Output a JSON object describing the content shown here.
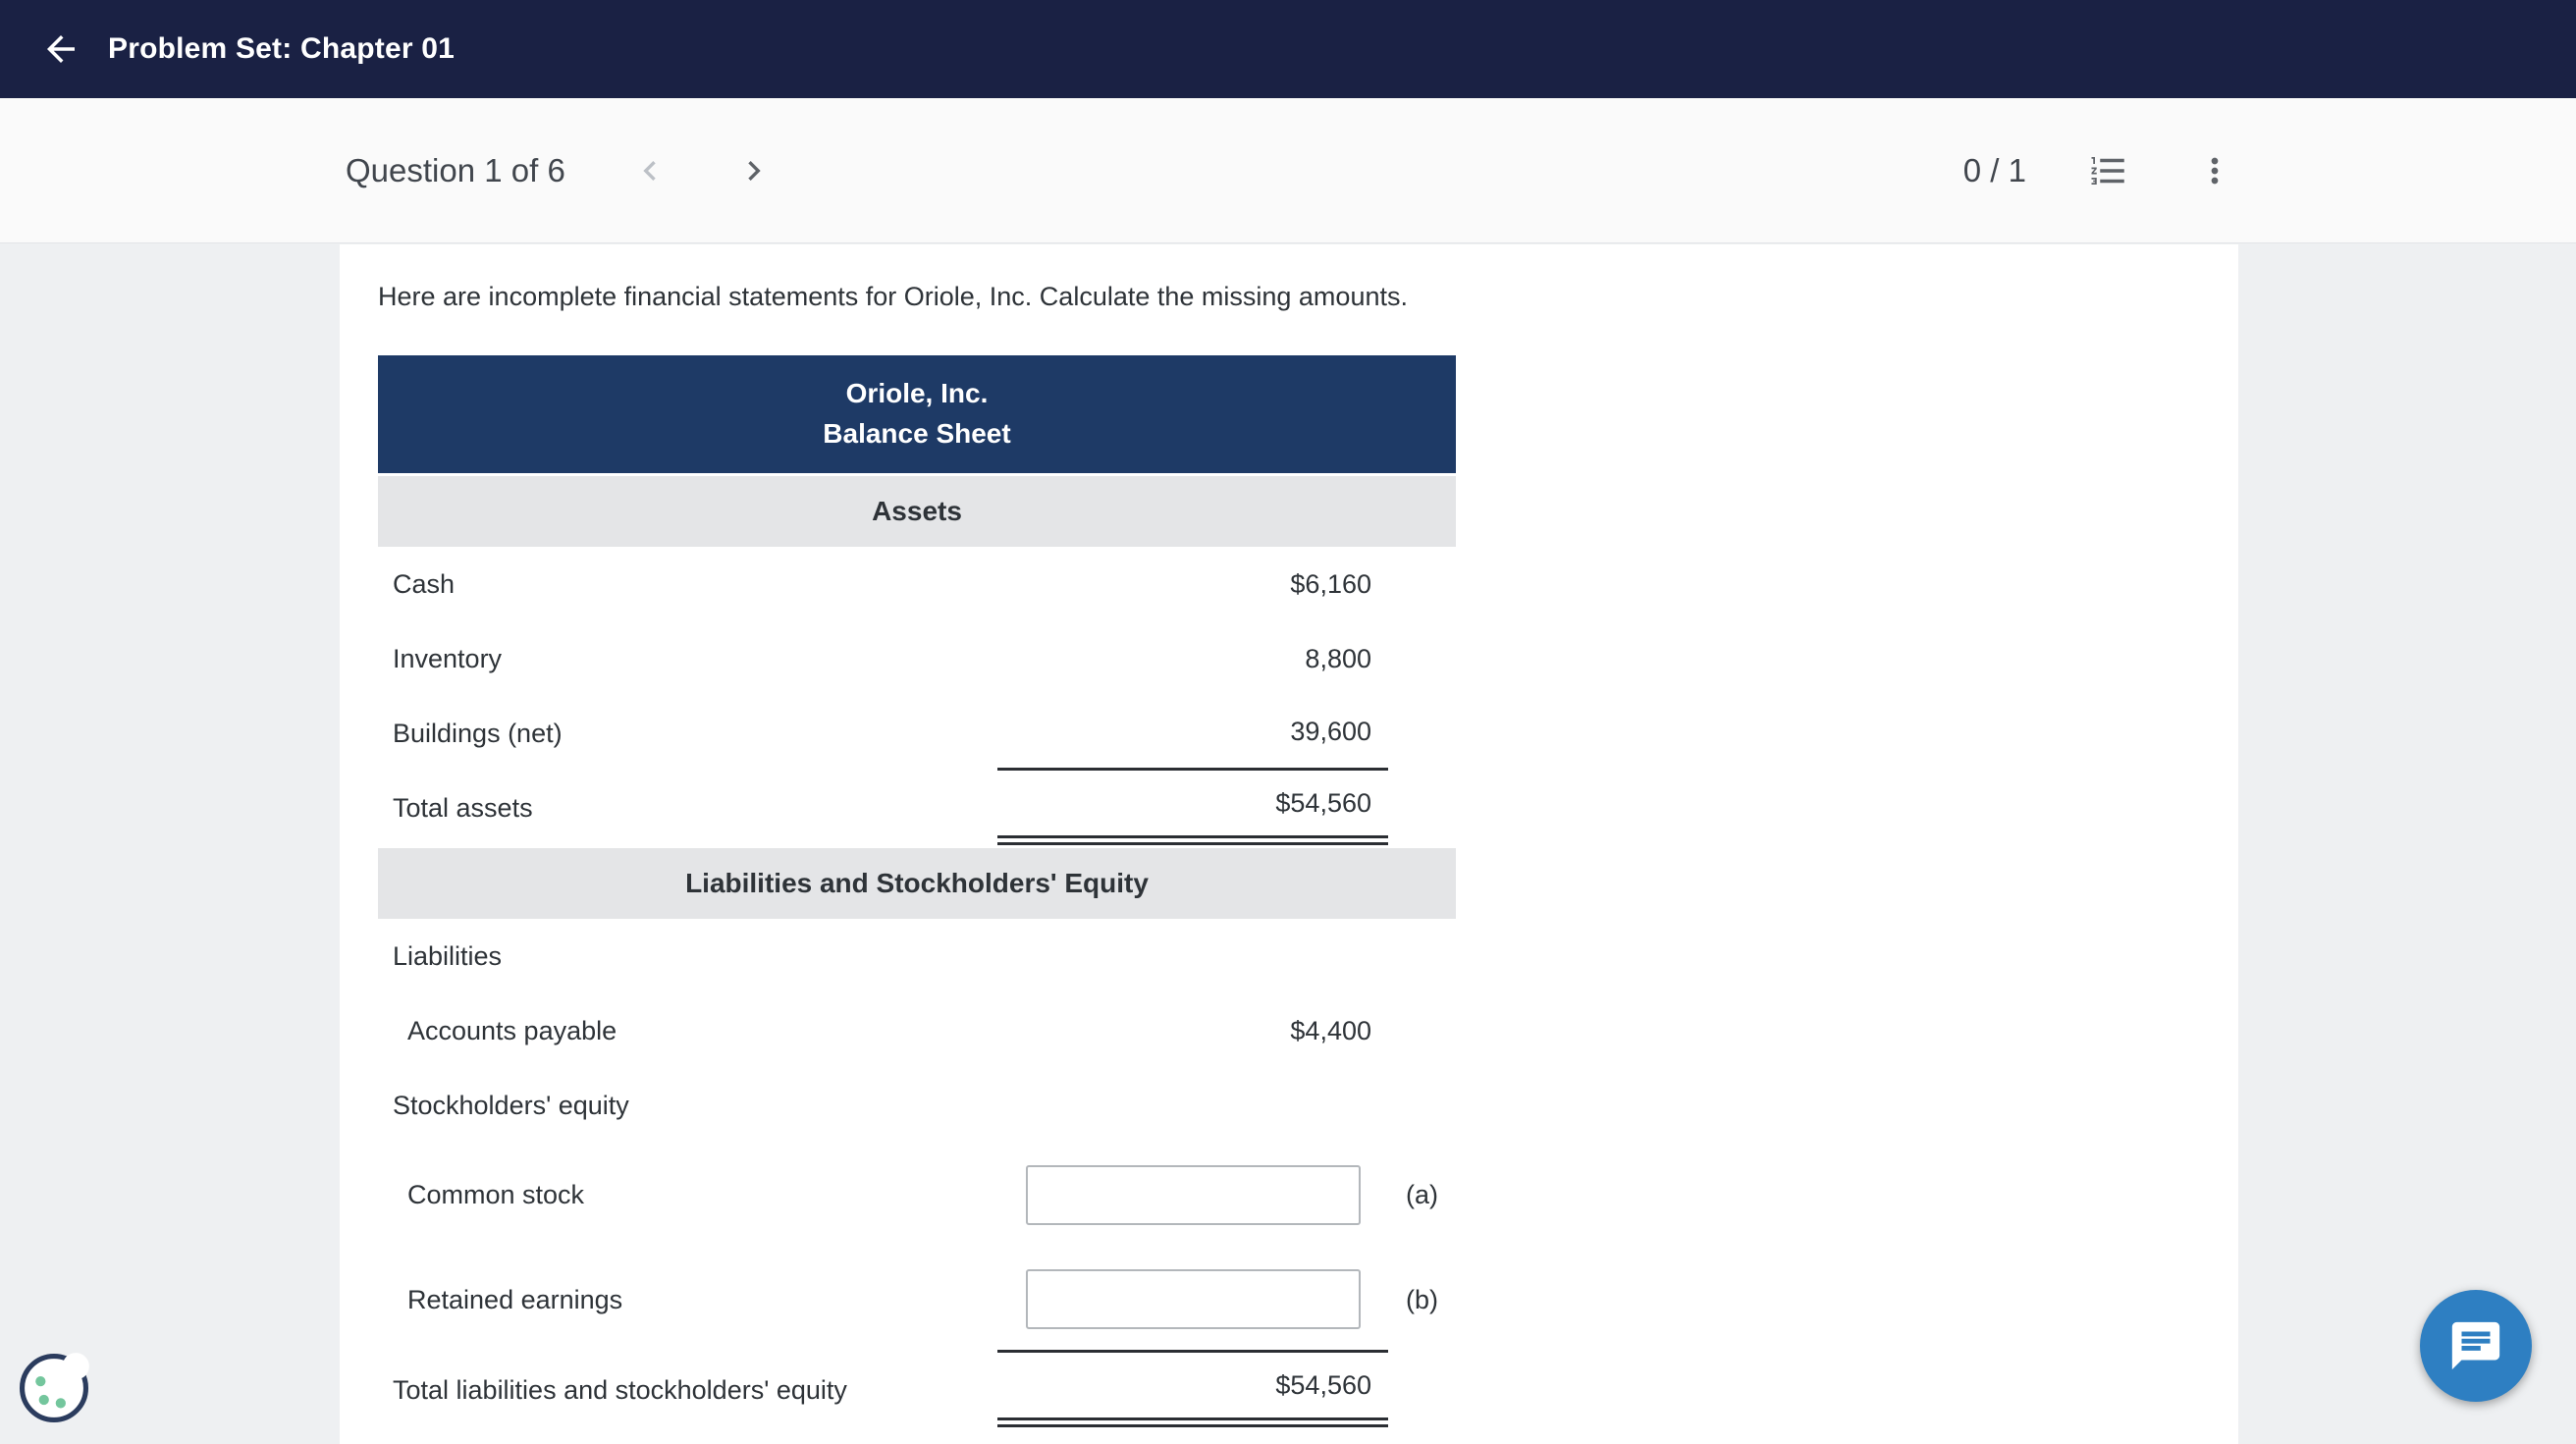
{
  "colors": {
    "top_bar": "#1a2144",
    "table_header": "#1e3a66",
    "section_bg": "#e4e5e7",
    "toolbar_bg": "#fafafa",
    "page_bg": "#eef0f2",
    "rule": "#2b2e33",
    "chat_button": "#2e7fc2",
    "icon_gray": "#5f6368",
    "icon_disabled": "#bcc0c6",
    "text_dark": "#2e3338",
    "text_toolbar": "#41464d"
  },
  "top_bar": {
    "title": "Problem Set: Chapter 01"
  },
  "toolbar": {
    "question_label": "Question 1 of 6",
    "score": "0 / 1",
    "icons": {
      "back": "arrow-left",
      "previous": "chevron-left",
      "next": "chevron-right",
      "question_list": "numbered-list",
      "more": "vertical-ellipsis"
    }
  },
  "question": {
    "prompt": "Here are incomplete financial statements for Oriole, Inc. Calculate the missing amounts."
  },
  "balance_sheet": {
    "company": "Oriole, Inc.",
    "title": "Balance Sheet",
    "rows": [
      {
        "type": "section",
        "key": "assets",
        "label": "Assets"
      },
      {
        "type": "data",
        "key": "cash",
        "label": "Cash",
        "value": "$6,160"
      },
      {
        "type": "data",
        "key": "inventory",
        "label": "Inventory",
        "value": "8,800"
      },
      {
        "type": "data",
        "key": "buildings-net",
        "label": "Buildings (net)",
        "value": "39,600",
        "rule": "single"
      },
      {
        "type": "data",
        "key": "total-assets",
        "label": "Total assets",
        "value": "$54,560",
        "rule": "double"
      },
      {
        "type": "section",
        "key": "liabilities-equity",
        "label": "Liabilities and Stockholders' Equity"
      },
      {
        "type": "label",
        "key": "liabilities",
        "label": "Liabilities"
      },
      {
        "type": "data",
        "key": "accounts-payable",
        "label": "Accounts payable",
        "value": "$4,400",
        "indent": 1
      },
      {
        "type": "label",
        "key": "stockholders-equity",
        "label": "Stockholders' equity"
      },
      {
        "type": "input",
        "key": "common-stock",
        "label": "Common stock",
        "value": "",
        "placeholder": "",
        "suffix": "(a)",
        "indent": 1
      },
      {
        "type": "input",
        "key": "retained-earnings",
        "label": "Retained earnings",
        "value": "",
        "placeholder": "",
        "suffix": "(b)",
        "indent": 1,
        "rule": "single"
      },
      {
        "type": "data",
        "key": "total-liabilities-equity",
        "label": "Total liabilities and stockholders' equity",
        "value": "$54,560",
        "rule": "double"
      }
    ]
  },
  "widgets": {
    "cookie_button": "cookie-consent",
    "chat_button": "support-chat"
  }
}
